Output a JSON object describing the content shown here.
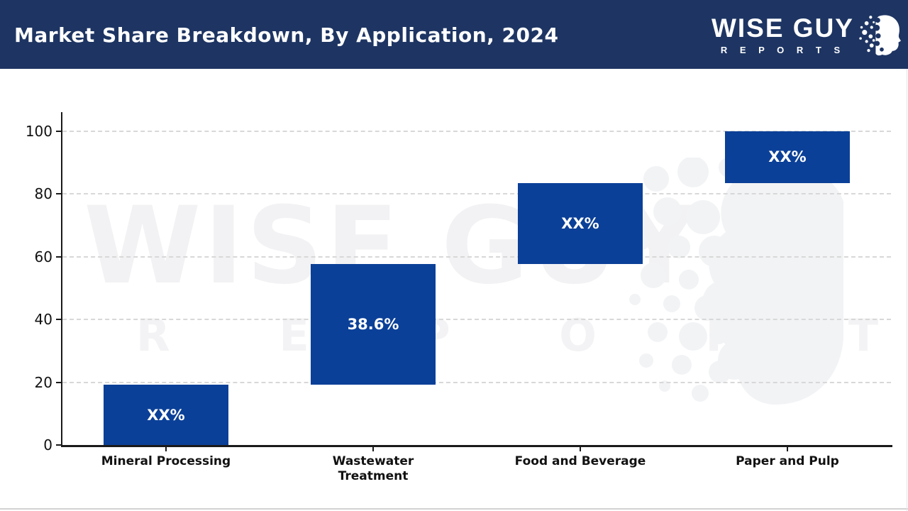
{
  "header": {
    "title": "Market Share Breakdown, By Application, 2024",
    "logo": {
      "brand_line1": "WISE GUY",
      "brand_line2": "R E P O R T S"
    }
  },
  "watermark": {
    "line1": "WISE GUY",
    "line2": "R E P O R T S"
  },
  "colors": {
    "header_bg": "#1e3563",
    "bar": "#0b4098",
    "bar_label": "#ffffff",
    "grid": "#d8d8d8",
    "axis": "#1a1a1a",
    "watermark": "#f2f3f5",
    "page_bg": "#ffffff"
  },
  "chart_data": {
    "type": "bar",
    "variant": "floating-segment waterfall (stacked market-share breakdown)",
    "title": "Market Share Breakdown, By Application, 2024",
    "categories": [
      "Mineral Processing",
      "Wastewater Treatment",
      "Food and Beverage",
      "Paper and Pulp"
    ],
    "category_label_lines": [
      [
        "Mineral Processing"
      ],
      [
        "Wastewater",
        "Treatment"
      ],
      [
        "Food and Beverage"
      ],
      [
        "Paper and Pulp"
      ]
    ],
    "segments": [
      {
        "category": "Mineral Processing",
        "start": 0,
        "end": 19.2,
        "label": "XX%"
      },
      {
        "category": "Wastewater Treatment",
        "start": 19.2,
        "end": 57.8,
        "label": "38.6%",
        "value": 38.6
      },
      {
        "category": "Food and Beverage",
        "start": 57.8,
        "end": 83.5,
        "label": "XX%"
      },
      {
        "category": "Paper and Pulp",
        "start": 83.5,
        "end": 100,
        "label": "XX%"
      }
    ],
    "yticks": [
      0,
      20,
      40,
      60,
      80,
      100
    ],
    "ylim": [
      0,
      100
    ],
    "xlabel": "",
    "ylabel": "",
    "grid": "horizontal-dashed",
    "legend": "none"
  }
}
